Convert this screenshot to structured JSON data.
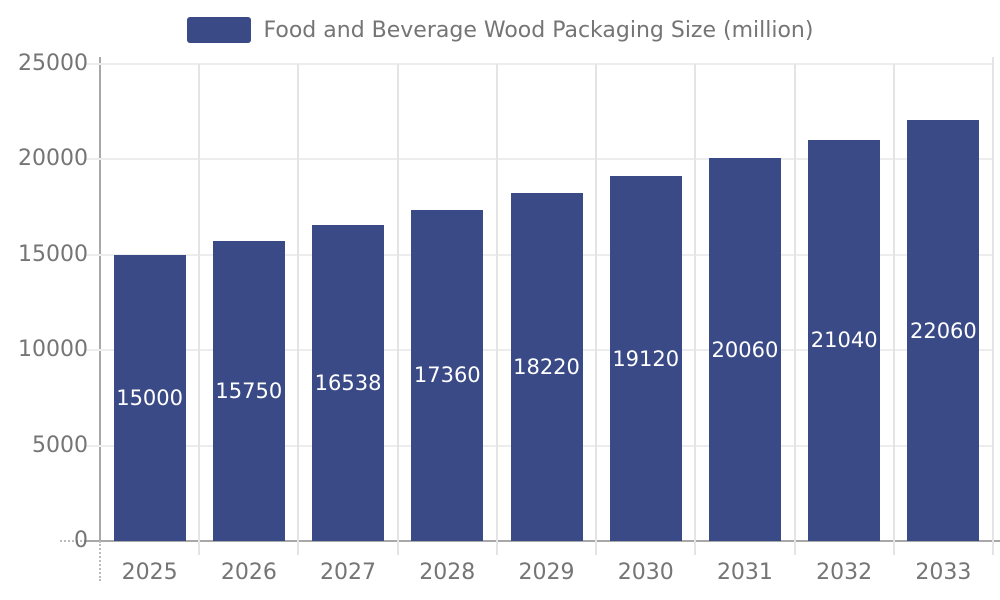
{
  "chart_data": {
    "type": "bar",
    "title": "Food and Beverage Wood Packaging Size (million)",
    "legend": {
      "label": "Food and Beverage Wood Packaging Size (million)",
      "position": "top-center"
    },
    "categories": [
      "2025",
      "2026",
      "2027",
      "2028",
      "2029",
      "2030",
      "2031",
      "2032",
      "2033"
    ],
    "series": [
      {
        "name": "Food and Beverage Wood Packaging Size (million)",
        "values": [
          15000,
          15750,
          16538,
          17360,
          18220,
          19120,
          20060,
          21040,
          22060
        ]
      }
    ],
    "xlabel": "",
    "ylabel": "",
    "ylim": [
      0,
      25000
    ],
    "yticks": [
      0,
      5000,
      10000,
      15000,
      20000,
      25000
    ],
    "grid": true,
    "value_labels": {
      "position": "inside-center"
    }
  },
  "colors": {
    "bar": "#3A4A86",
    "bar_value_label": "#FFFFFF",
    "axis_line": "#A8A8A8",
    "gridline_h": "#EDEDED",
    "gridline_v": "#E4E4E4",
    "dotted_tick": "#BBBBBB",
    "tick_text": "#757575",
    "legend_text": "#757575",
    "background": "#FFFFFF"
  }
}
